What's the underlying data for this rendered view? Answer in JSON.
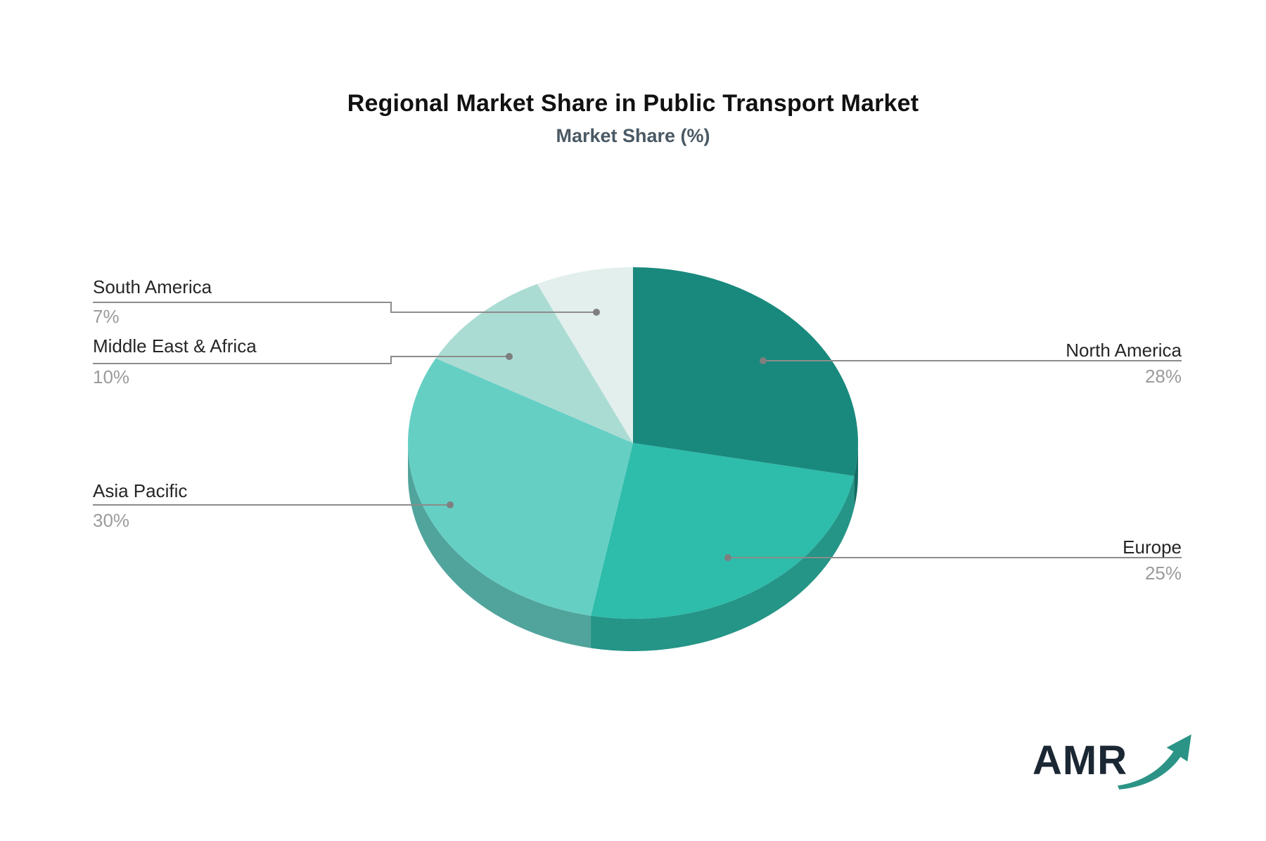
{
  "chart_data": {
    "type": "pie",
    "title": "Regional Market Share in Public Transport Market",
    "subtitle": "Market Share (%)",
    "style": "3d-pie",
    "start_angle": "12-oclock-clockwise",
    "legend_position": "none",
    "unit": "%",
    "slices": [
      {
        "label": "North America",
        "value": 28,
        "pct_label": "28%",
        "color": "#19897d"
      },
      {
        "label": "Europe",
        "value": 25,
        "pct_label": "25%",
        "color": "#2ebcab"
      },
      {
        "label": "Asia Pacific",
        "value": 30,
        "pct_label": "30%",
        "color": "#66cfc4"
      },
      {
        "label": "Middle East & Africa",
        "value": 10,
        "pct_label": "10%",
        "color": "#abdcd4"
      },
      {
        "label": "South America",
        "value": 7,
        "pct_label": "7%",
        "color": "#e2efec"
      }
    ]
  },
  "logo": {
    "text": "AMR",
    "text_color": "#1b2733",
    "arrow_color": "#2b9486"
  },
  "colors": {
    "background": "#ffffff",
    "title": "#111111",
    "subtitle": "#4a5964",
    "label_text": "#262626",
    "pct_text": "#9b9b9b",
    "leader_line": "#8c8c8c",
    "leader_dot": "#7f7f7f"
  }
}
